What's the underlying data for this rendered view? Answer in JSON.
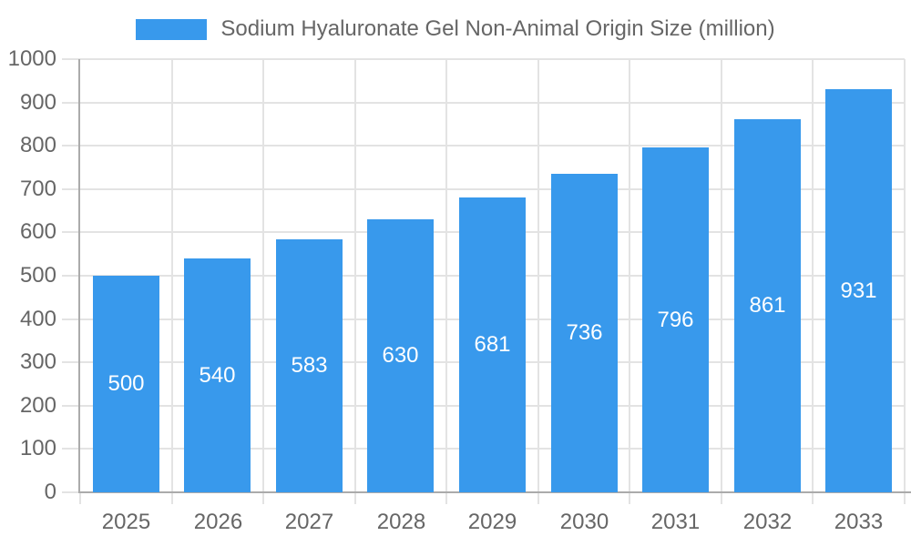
{
  "chart_data": {
    "type": "bar",
    "title": "Sodium Hyaluronate Gel Non-Animal Origin Size (million)",
    "legend": {
      "position": "top",
      "label": "Sodium Hyaluronate Gel Non-Animal Origin Size (million)"
    },
    "categories": [
      "2025",
      "2026",
      "2027",
      "2028",
      "2029",
      "2030",
      "2031",
      "2032",
      "2033"
    ],
    "values": [
      500,
      540,
      583,
      630,
      681,
      736,
      796,
      861,
      931
    ],
    "xlabel": "",
    "ylabel": "",
    "ylim": [
      0,
      1000
    ],
    "ytick_step": 100,
    "grid": true,
    "value_labels": "centered-inside-bars",
    "colors": {
      "bar": "#3899EC",
      "axis_text": "#666666",
      "value_label": "#FFFFFF",
      "gridline": "#E3E3E3",
      "axis_line": "#ABABAB"
    }
  }
}
